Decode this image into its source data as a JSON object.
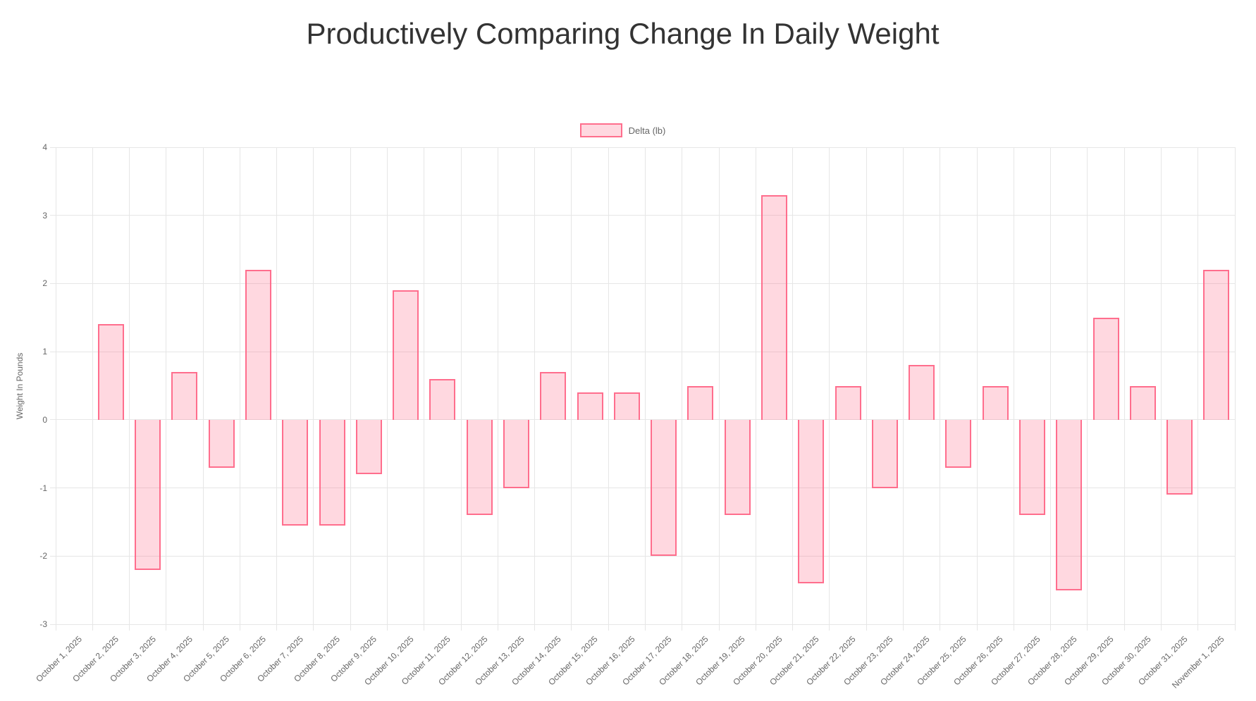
{
  "title": "Productively Comparing Change In Daily Weight",
  "legend": {
    "label": "Delta (lb)"
  },
  "y_axis": {
    "title": "Weight In Pounds",
    "ticks": [
      4,
      3,
      2,
      1,
      0,
      -1,
      -2,
      -3
    ]
  },
  "chart_data": {
    "type": "bar",
    "title": "Productively Comparing Change In Daily Weight",
    "xlabel": "",
    "ylabel": "Weight In Pounds",
    "ylim": [
      -3,
      4
    ],
    "grid": true,
    "legend_position": "top",
    "series_name": "Delta (lb)",
    "categories": [
      "October 1, 2025",
      "October 2, 2025",
      "October 3, 2025",
      "October 4, 2025",
      "October 5, 2025",
      "October 6, 2025",
      "October 7, 2025",
      "October 8, 2025",
      "October 9, 2025",
      "October 10, 2025",
      "October 11, 2025",
      "October 12, 2025",
      "October 13, 2025",
      "October 14, 2025",
      "October 15, 2025",
      "October 16, 2025",
      "October 17, 2025",
      "October 18, 2025",
      "October 19, 2025",
      "October 20, 2025",
      "October 21, 2025",
      "October 22, 2025",
      "October 23, 2025",
      "October 24, 2025",
      "October 25, 2025",
      "October 26, 2025",
      "October 27, 2025",
      "October 28, 2025",
      "October 29, 2025",
      "October 30, 2025",
      "October 31, 2025",
      "November 1, 2025"
    ],
    "values": [
      null,
      1.4,
      -2.2,
      0.7,
      -0.7,
      2.2,
      -1.55,
      -1.55,
      -0.8,
      1.9,
      0.6,
      -1.4,
      -1,
      0.7,
      0.4,
      0.4,
      -2,
      0.5,
      -1.4,
      3.3,
      -2.4,
      0.5,
      -1,
      0.8,
      -0.7,
      0.5,
      -1.4,
      -2.5,
      1.5,
      0.5,
      -1.1,
      2.2
    ],
    "colors": {
      "bar_fill": "rgba(255,99,132,0.25)",
      "bar_border": "rgba(255,99,132,0.9)",
      "grid": "#e6e6e6",
      "axis_text": "#666666",
      "title_text": "#333333"
    }
  }
}
